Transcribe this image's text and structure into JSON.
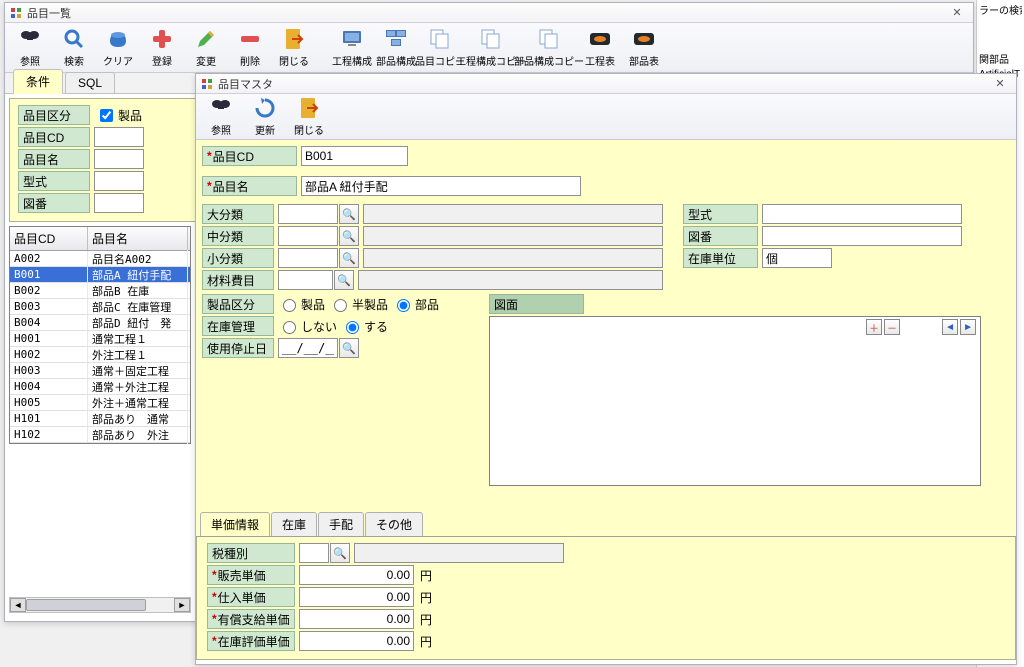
{
  "side": {
    "search": "ラーの検索",
    "item1": "関部品",
    "item2": "ArtificialT"
  },
  "win1": {
    "title": "品目一覧",
    "toolbar": [
      {
        "l": "参照"
      },
      {
        "l": "検索"
      },
      {
        "l": "クリア"
      },
      {
        "l": "登録"
      },
      {
        "l": "変更"
      },
      {
        "l": "削除"
      },
      {
        "l": "閉じる"
      },
      {
        "l": "工程構成"
      },
      {
        "l": "部品構成"
      },
      {
        "l": "品目コピー"
      },
      {
        "l": "工程構成コピー"
      },
      {
        "l": "部品構成コピー"
      },
      {
        "l": "工程表"
      },
      {
        "l": "部品表"
      }
    ],
    "tabs": {
      "a": "条件",
      "b": "SQL"
    },
    "form": {
      "f1": "品目区分",
      "f1chk": "製品",
      "f2": "品目CD",
      "f3": "品目名",
      "f4": "型式",
      "f5": "図番"
    },
    "grid": {
      "h1": "品目CD",
      "h2": "品目名",
      "rows": [
        {
          "c1": "A002",
          "c2": "品目名A002"
        },
        {
          "c1": "B001",
          "c2": "部品A 紐付手配",
          "sel": true
        },
        {
          "c1": "B002",
          "c2": "部品B 在庫"
        },
        {
          "c1": "B003",
          "c2": "部品C 在庫管理"
        },
        {
          "c1": "B004",
          "c2": "部品D 紐付　発"
        },
        {
          "c1": "H001",
          "c2": "通常工程１"
        },
        {
          "c1": "H002",
          "c2": "外注工程１"
        },
        {
          "c1": "H003",
          "c2": "通常＋固定工程"
        },
        {
          "c1": "H004",
          "c2": "通常＋外注工程"
        },
        {
          "c1": "H005",
          "c2": "外注＋通常工程"
        },
        {
          "c1": "H101",
          "c2": "部品あり　通常"
        },
        {
          "c1": "H102",
          "c2": "部品あり　外注"
        }
      ]
    }
  },
  "win2": {
    "title": "品目マスタ",
    "toolbar": [
      {
        "l": "参照"
      },
      {
        "l": "更新"
      },
      {
        "l": "閉じる"
      }
    ],
    "f": {
      "cd_l": "品目CD",
      "cd_v": "B001",
      "name_l": "品目名",
      "name_v": "部品A 紐付手配",
      "cat1": "大分類",
      "cat2": "中分類",
      "cat3": "小分類",
      "mat": "材料費目",
      "kubun": "製品区分",
      "r1": "製品",
      "r2": "半製品",
      "r3": "部品",
      "stock": "在庫管理",
      "s1": "しない",
      "s2": "する",
      "stop": "使用停止日",
      "stop_v": "__/__/__",
      "model": "型式",
      "draw_no": "図番",
      "unit": "在庫単位",
      "unit_v": "個",
      "drawing": "図面"
    },
    "tabs": {
      "t1": "単価情報",
      "t2": "在庫",
      "t3": "手配",
      "t4": "その他"
    },
    "price": {
      "tax": "税種別",
      "p1": "販売単価",
      "p2": "仕入単価",
      "p3": "有償支給単価",
      "p4": "在庫評価単価",
      "v": "0.00",
      "yen": "円"
    }
  }
}
